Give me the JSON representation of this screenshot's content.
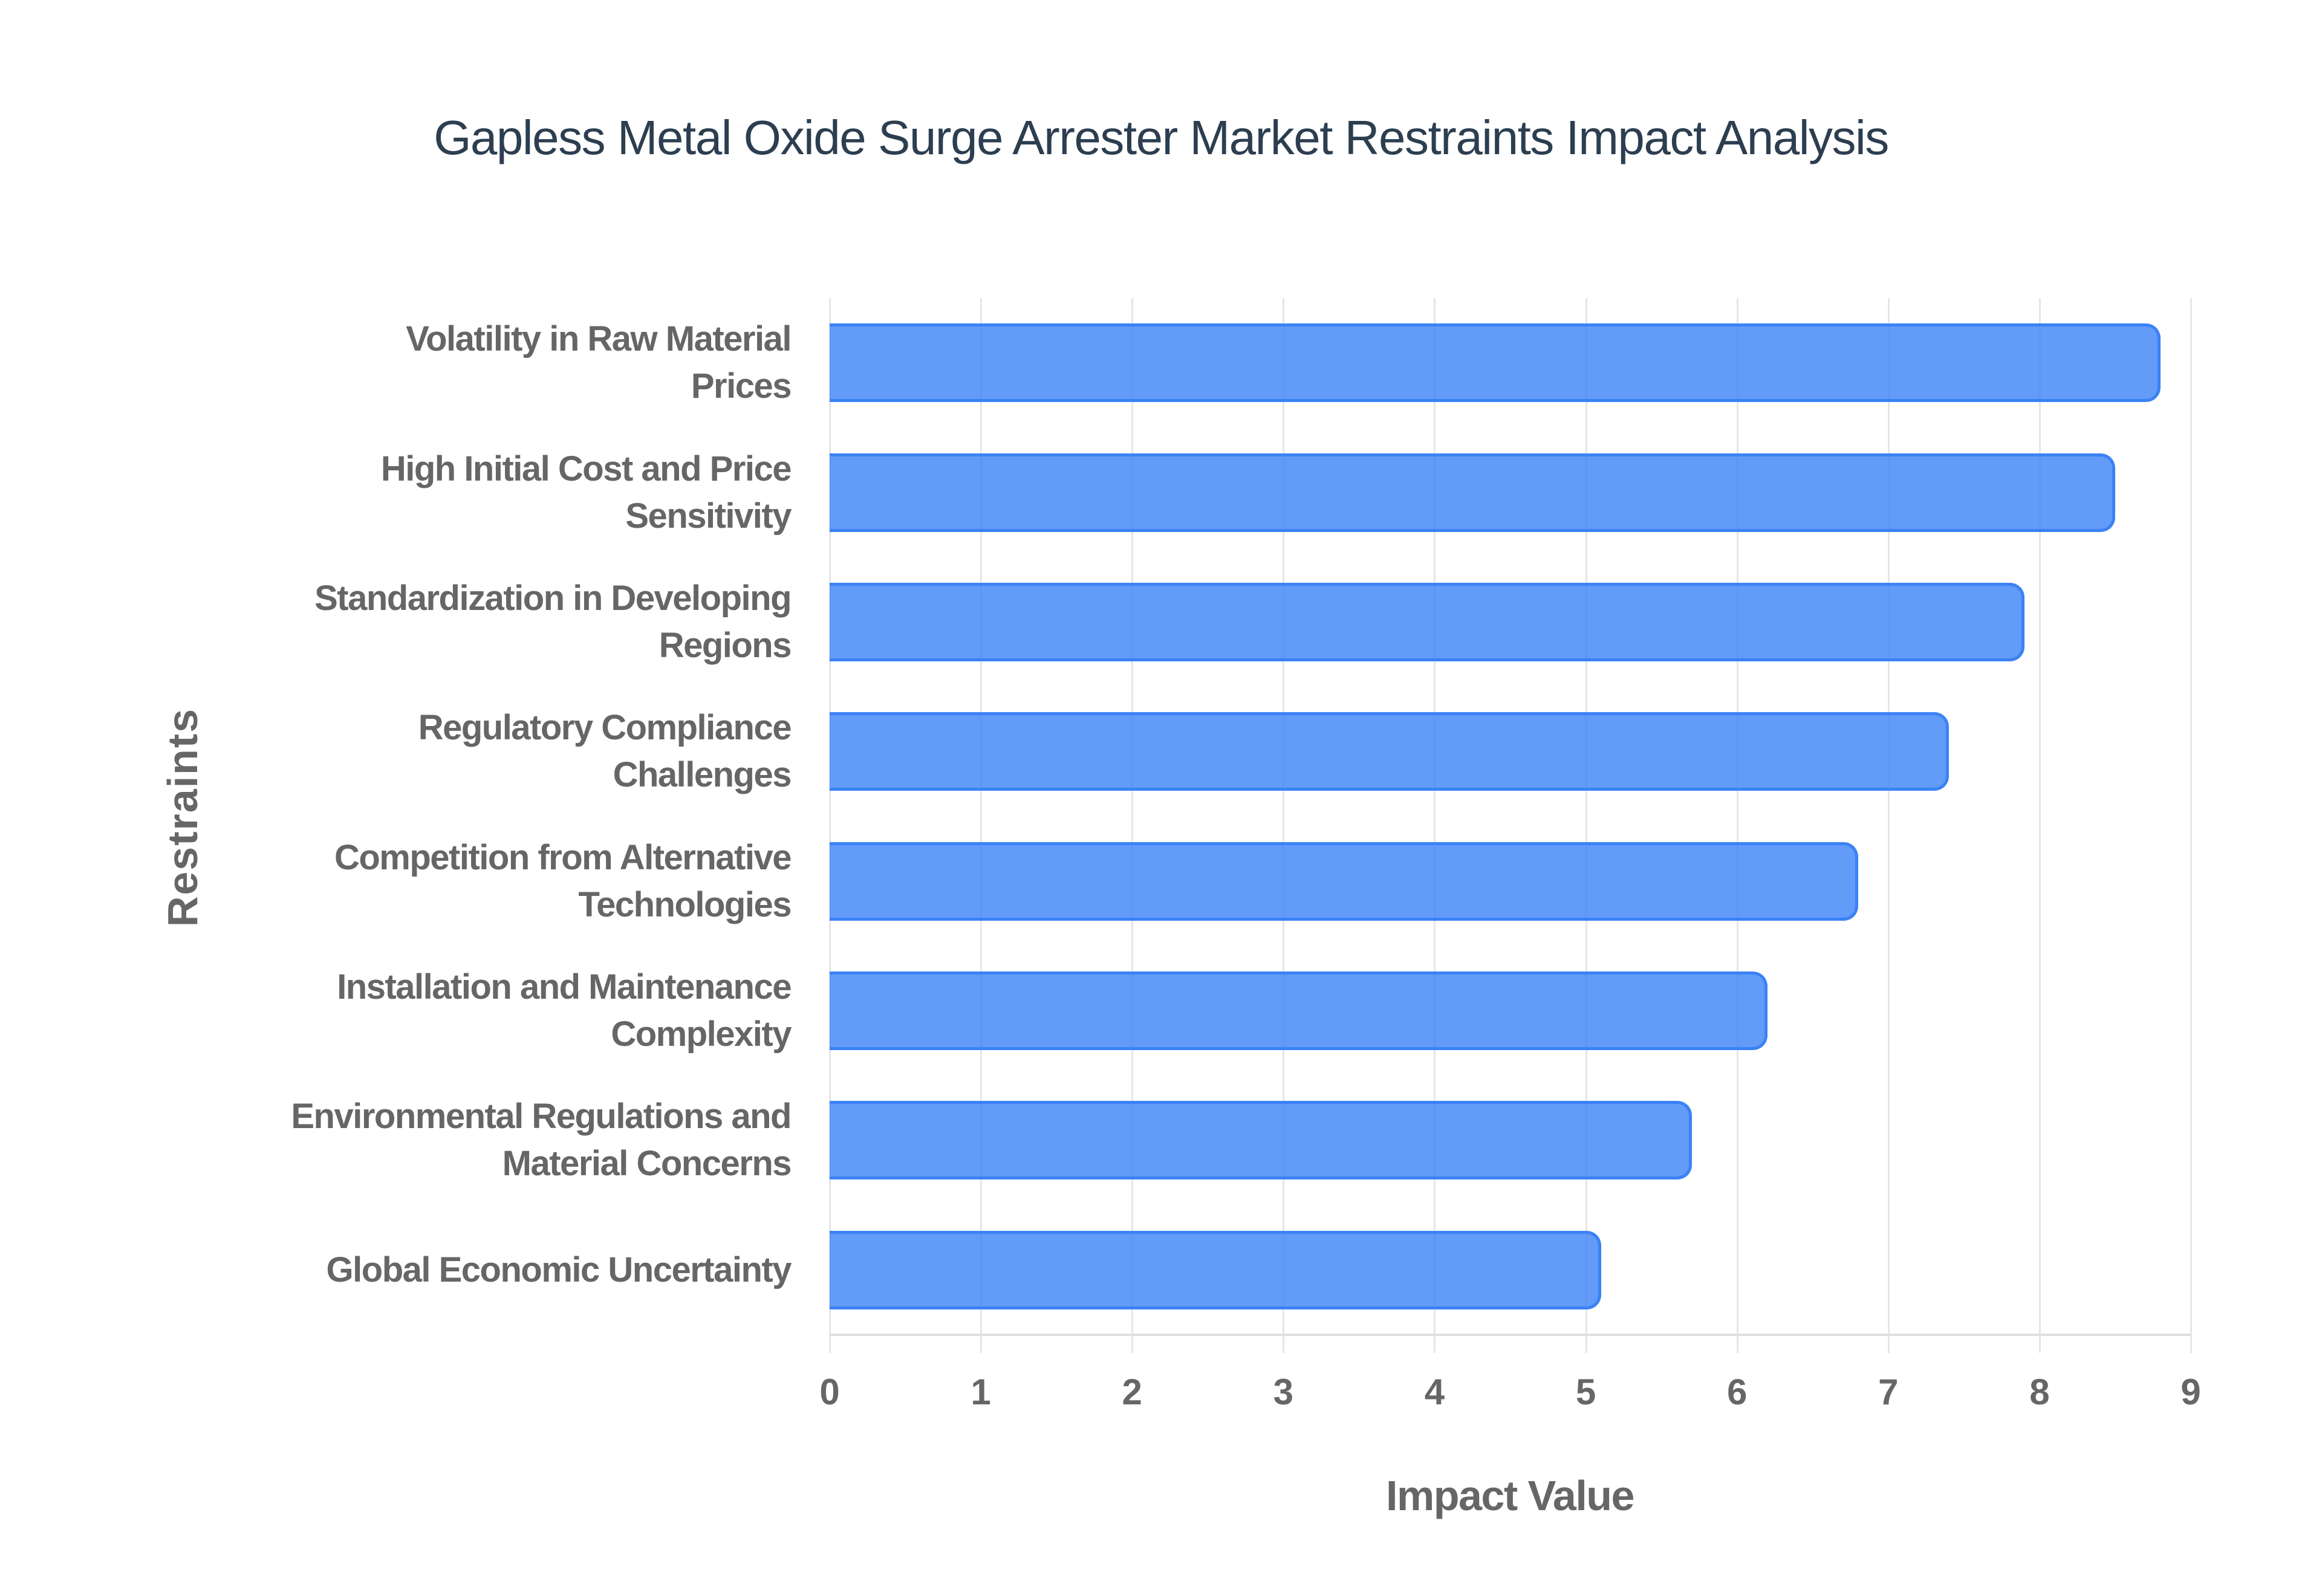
{
  "chart": {
    "title": "Gapless Metal Oxide Surge Arrester Market Restraints Impact Analysis",
    "x_axis_title": "Impact Value",
    "y_axis_title": "Restraints",
    "bar_fill": "#3b82f6cc",
    "bar_border": "#3b82f6",
    "title_color": "#2c3e50",
    "label_color": "#666666"
  },
  "chart_data": {
    "type": "bar",
    "orientation": "horizontal",
    "title": "Gapless Metal Oxide Surge Arrester Market Restraints Impact Analysis",
    "xlabel": "Impact Value",
    "ylabel": "Restraints",
    "xlim": [
      0,
      9
    ],
    "x_ticks": [
      0,
      1,
      2,
      3,
      4,
      5,
      6,
      7,
      8,
      9
    ],
    "grid": true,
    "legend": null,
    "categories": [
      "Volatility in Raw Material Prices",
      "High Initial Cost and Price Sensitivity",
      "Standardization in Developing Regions",
      "Regulatory Compliance Challenges",
      "Competition from Alternative Technologies",
      "Installation and Maintenance Complexity",
      "Environmental Regulations and Material Concerns",
      "Global Economic Uncertainty"
    ],
    "category_label_lines": [
      [
        "Volatility in Raw Material",
        "Prices"
      ],
      [
        "High Initial Cost and Price",
        "Sensitivity"
      ],
      [
        "Standardization in Developing",
        "Regions"
      ],
      [
        "Regulatory Compliance",
        "Challenges"
      ],
      [
        "Competition from Alternative",
        "Technologies"
      ],
      [
        "Installation and Maintenance",
        "Complexity"
      ],
      [
        "Environmental Regulations and",
        "Material Concerns"
      ],
      [
        "Global Economic Uncertainty"
      ]
    ],
    "values": [
      8.8,
      8.5,
      7.9,
      7.4,
      6.8,
      6.2,
      5.7,
      5.1
    ]
  }
}
